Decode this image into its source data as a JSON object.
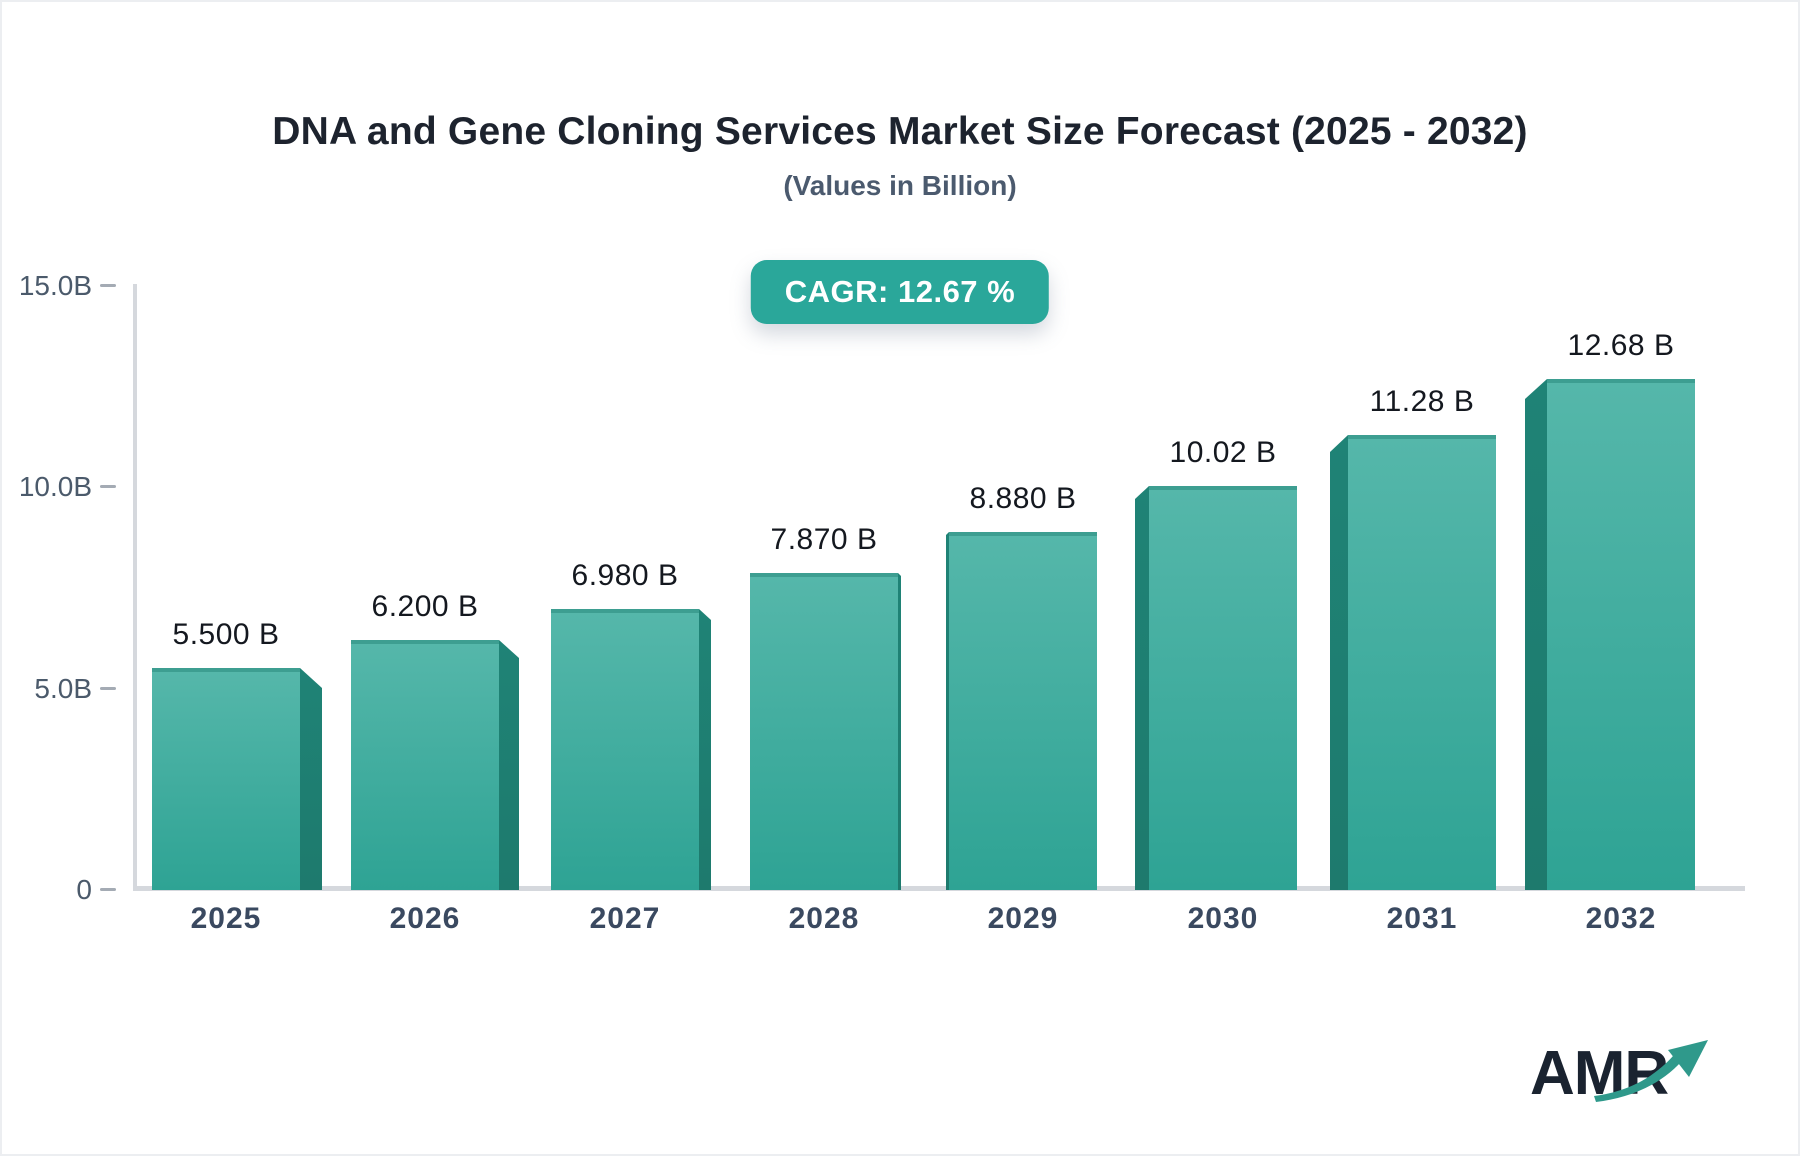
{
  "title": "DNA and Gene Cloning Services Market Size Forecast (2025 - 2032)",
  "subtitle": "(Values in Billion)",
  "badge": {
    "label": "CAGR: 12.67 %"
  },
  "chart_data": {
    "type": "bar",
    "categories": [
      "2025",
      "2026",
      "2027",
      "2028",
      "2029",
      "2030",
      "2031",
      "2032"
    ],
    "values": [
      5.5,
      6.2,
      6.98,
      7.87,
      8.88,
      10.02,
      11.28,
      12.68
    ],
    "value_labels": [
      "5.500 B",
      "6.200 B",
      "6.980 B",
      "7.870 B",
      "8.880 B",
      "10.02 B",
      "11.28 B",
      "12.68 B"
    ],
    "title": "DNA and Gene Cloning Services Market Size Forecast (2025 - 2032)",
    "subtitle": "(Values in Billion)",
    "xlabel": "",
    "ylabel": "",
    "ylim": [
      0,
      15
    ],
    "yticks": [
      {
        "label": "15.0B",
        "value": 15
      },
      {
        "label": "10.0B",
        "value": 10
      },
      {
        "label": "5.0B",
        "value": 5
      },
      {
        "label": "0",
        "value": 0
      }
    ],
    "grid": false,
    "legend": false,
    "cagr": "12.67 %",
    "style": "3d-bars"
  },
  "colors": {
    "badge_bg": "#2aa79a",
    "bar_face_top": "#55b7aa",
    "bar_face_bottom": "#2ea394",
    "bar_face_edge": "#3d9e91",
    "bar_side_top": "#1f8376",
    "bar_side_bottom": "#1e7a6d",
    "axis_line": "#d5d8dd",
    "axis_text": "#4b5a6b",
    "year_text": "#3a4960",
    "value_text": "#14181f",
    "title_text": "#1d232e",
    "subtitle_text": "#4b5a6e",
    "logo_text": "#1a2330",
    "logo_arrow": "#2f998b"
  },
  "logo": {
    "text": "AMR"
  }
}
